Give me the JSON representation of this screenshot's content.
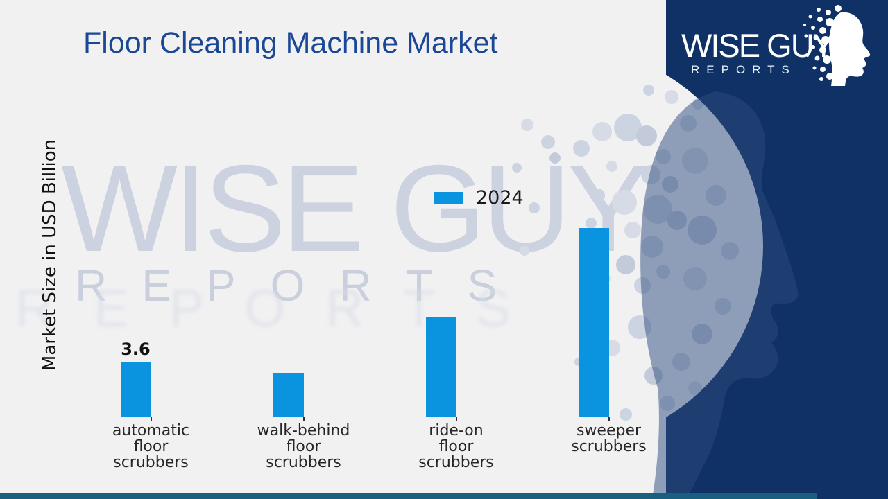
{
  "header": {
    "title": "Floor Cleaning Machine Market"
  },
  "logo": {
    "line1": "WISE GUY",
    "line2": "REPORTS"
  },
  "watermark": {
    "line1": "WISE GUY",
    "line2": "REPORTS",
    "line3": "REPORTS"
  },
  "chart_data": {
    "type": "bar",
    "title": "Floor Cleaning Machine Market",
    "xlabel": "",
    "ylabel": "Market Size in USD Billion",
    "categories": [
      "automatic floor scrubbers",
      "walk-behind floor scrubbers",
      "ride-on floor scrubbers",
      "sweeper scrubbers"
    ],
    "series": [
      {
        "name": "2024",
        "values": [
          3.6,
          2.9,
          6.5,
          12.3
        ]
      }
    ],
    "bar_labels": [
      "3.6",
      "",
      "",
      ""
    ],
    "ylim": [
      0,
      14
    ],
    "grid": false,
    "legend_position": "upper-center"
  },
  "colors": {
    "bar_blue": "#0a94e0",
    "navy": "#0f3166",
    "teal_footer": "#1a5f80",
    "title_blue": "#1a4796",
    "background": "#f1f1f2",
    "watermark_gray": "#ccd2df"
  }
}
